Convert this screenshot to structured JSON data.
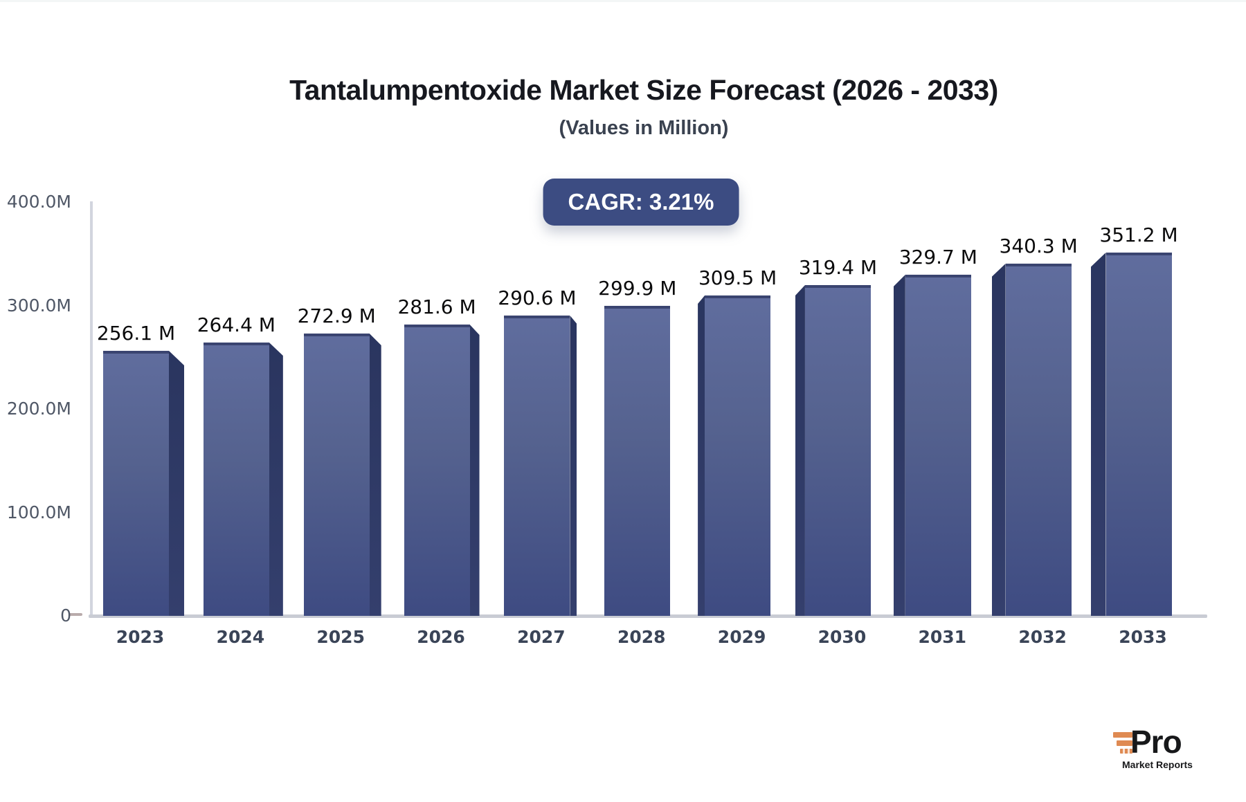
{
  "chart_data": {
    "type": "bar",
    "title": "Tantalumpentoxide Market Size Forecast (2026 - 2033)",
    "subtitle": "(Values in Million)",
    "cagr_badge": "CAGR: 3.21%",
    "cagr_percent": "3.21%",
    "unit": "Million",
    "categories": [
      "2023",
      "2024",
      "2025",
      "2026",
      "2027",
      "2028",
      "2029",
      "2030",
      "2031",
      "2032",
      "2033"
    ],
    "values": [
      256.1,
      264.4,
      272.9,
      281.6,
      290.6,
      299.9,
      309.5,
      319.4,
      329.7,
      340.3,
      351.2
    ],
    "value_labels": [
      "256.1 M",
      "264.4 M",
      "272.9 M",
      "281.6 M",
      "290.6 M",
      "299.9 M",
      "309.5 M",
      "319.4 M",
      "329.7 M",
      "340.3 M",
      "351.2 M"
    ],
    "ylim": [
      0,
      400
    ],
    "y_ticks": [
      {
        "value": 400,
        "label": "400.0M"
      },
      {
        "value": 300,
        "label": "300.0M"
      },
      {
        "value": 200,
        "label": "200.0M"
      },
      {
        "value": 100,
        "label": "100.0M"
      },
      {
        "value": 0,
        "label": "0"
      }
    ],
    "grid": false,
    "legend": "none",
    "colors": {
      "bar_face_top": "#606d9e",
      "bar_face_bottom": "#3e4b82",
      "bar_side_3d": "#2c3763",
      "badge_bg": "#3c4c82",
      "badge_text": "#ffffff",
      "axis_line": "#d2d5de",
      "baseline": "#c9ccd4",
      "value_label_text": "#0b0b0c",
      "tick_text": "#4f5766"
    }
  },
  "logo": {
    "brand": "Pro",
    "tagline": "Market Reports",
    "accent_color": "#df8a52"
  }
}
